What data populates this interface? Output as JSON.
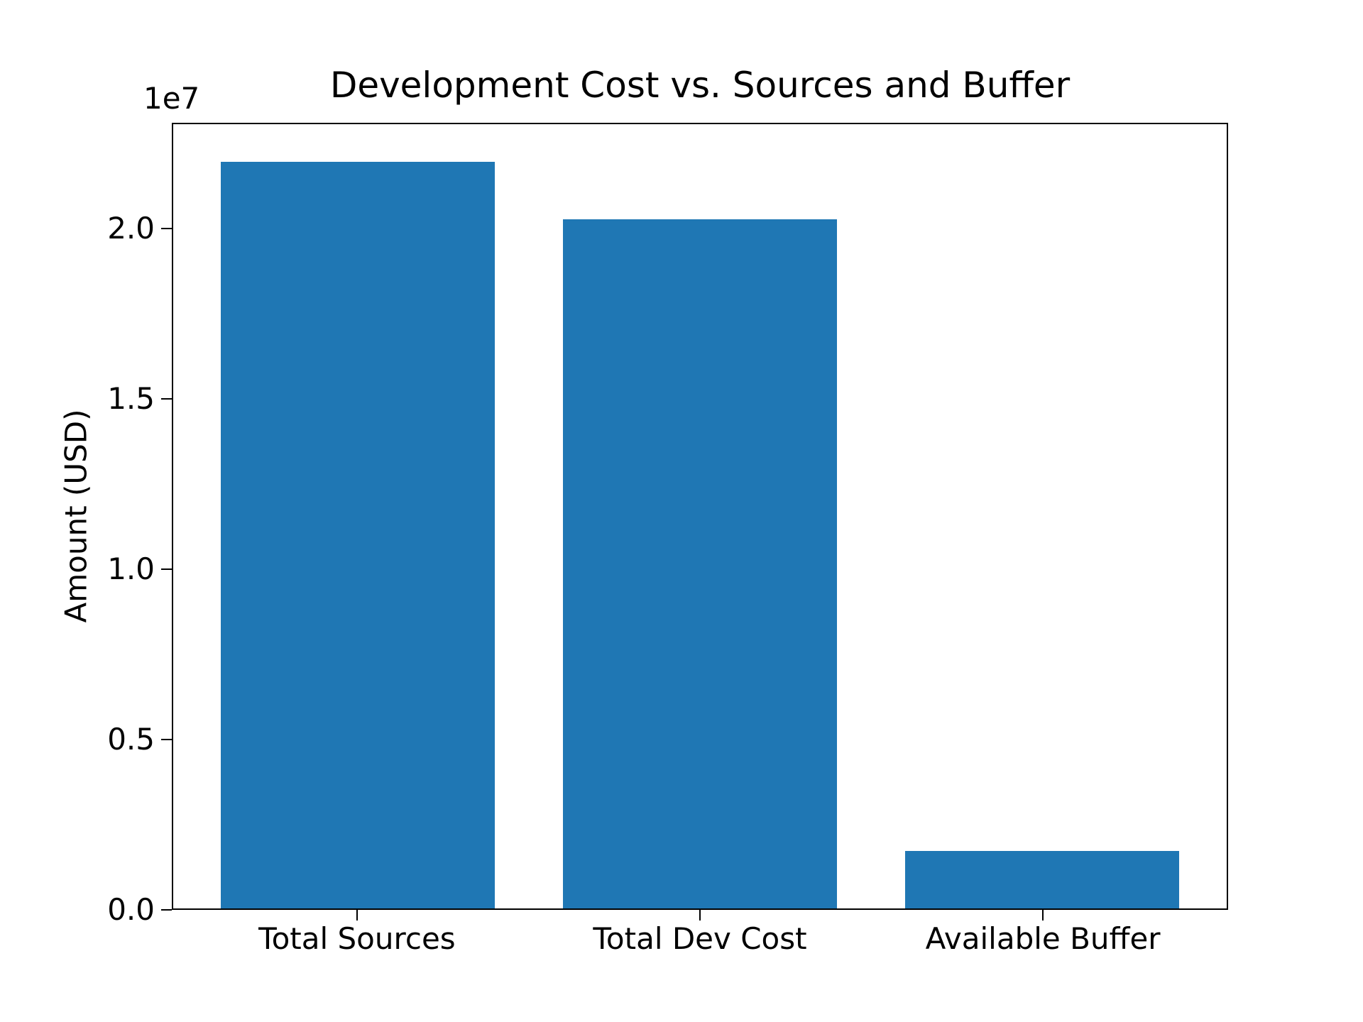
{
  "chart_data": {
    "type": "bar",
    "title": "Development Cost vs. Sources and Buffer",
    "xlabel": "",
    "ylabel": "Amount (USD)",
    "offset_text": "1e7",
    "categories": [
      "Total Sources",
      "Total Dev Cost",
      "Available Buffer"
    ],
    "values": [
      22000000,
      20300000,
      1700000
    ],
    "yticks": [
      {
        "value": 0,
        "label": "0.0"
      },
      {
        "value": 5000000,
        "label": "0.5"
      },
      {
        "value": 10000000,
        "label": "1.0"
      },
      {
        "value": 15000000,
        "label": "1.5"
      },
      {
        "value": 20000000,
        "label": "2.0"
      }
    ],
    "ylim": [
      0,
      23100000
    ],
    "bar_color": "#1f77b4",
    "axis_color": "#000000",
    "background_color": "#ffffff",
    "grid": false,
    "legend": null
  }
}
